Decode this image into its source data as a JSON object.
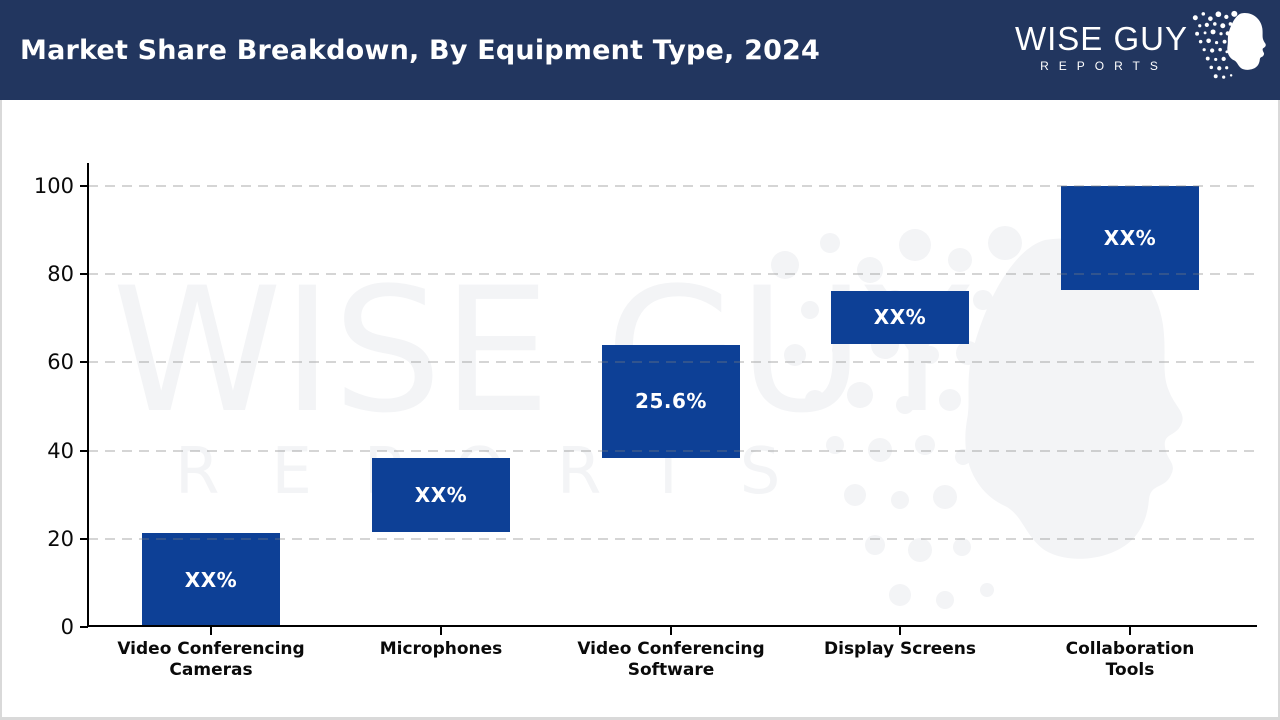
{
  "header": {
    "title": "Market Share Breakdown, By Equipment Type, 2024",
    "logo": {
      "name": "WISE GUY",
      "tagline": "REPORTS"
    }
  },
  "watermark": {
    "line1": "WISE GUY",
    "line2": "REPORTS"
  },
  "chart_data": {
    "type": "bar",
    "subtype": "floating-waterfall",
    "title": "Market Share Breakdown, By Equipment Type, 2024",
    "categories": [
      "Video Conferencing\nCameras",
      "Microphones",
      "Video Conferencing\nSoftware",
      "Display Screens",
      "Collaboration\nTools"
    ],
    "segments": [
      {
        "category": "Video Conferencing Cameras",
        "start": 0,
        "end": 21.3,
        "label": "XX%"
      },
      {
        "category": "Microphones",
        "start": 21.5,
        "end": 38.3,
        "label": "XX%"
      },
      {
        "category": "Video Conferencing Software",
        "start": 38.4,
        "end": 64.0,
        "label": "25.6%"
      },
      {
        "category": "Display Screens",
        "start": 64.2,
        "end": 76.3,
        "label": "XX%"
      },
      {
        "category": "Collaboration Tools",
        "start": 76.5,
        "end": 100,
        "label": "XX%"
      }
    ],
    "xlabel": "",
    "ylabel": "",
    "ylim": [
      0,
      105
    ],
    "yticks": [
      0,
      20,
      40,
      60,
      80,
      100
    ],
    "grid": "horizontal-dashed",
    "legend": "none",
    "bar_color": "#0d4096",
    "bar_label_color": "#ffffff",
    "header_color": "#22365f"
  }
}
